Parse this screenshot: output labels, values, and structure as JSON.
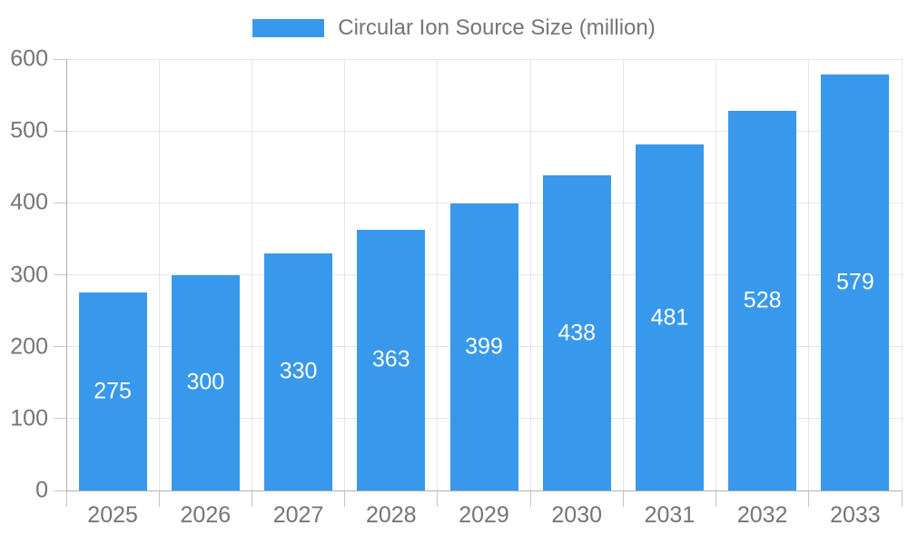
{
  "legend": {
    "label": "Circular Ion Source Size (million)"
  },
  "colors": {
    "bar": "#3899ec",
    "value_label": "#ffffff",
    "axis_text": "#757575",
    "grid_line": "#e6e6e6",
    "tick_line": "#c4c4c4",
    "axis_line": "#b0b0b0",
    "background": "#ffffff"
  },
  "chart_data": {
    "type": "bar",
    "title": "Circular Ion Source Size (million)",
    "categories": [
      "2025",
      "2026",
      "2027",
      "2028",
      "2029",
      "2030",
      "2031",
      "2032",
      "2033"
    ],
    "series": [
      {
        "name": "Circular Ion Source Size (million)",
        "values": [
          275,
          300,
          330,
          363,
          399,
          438,
          481,
          528,
          579
        ]
      }
    ],
    "xlabel": "",
    "ylabel": "",
    "ylim": [
      0,
      600
    ],
    "y_ticks": [
      0,
      100,
      200,
      300,
      400,
      500,
      600
    ],
    "grid": true,
    "legend_position": "top-center",
    "value_label_position": "inside-center"
  }
}
